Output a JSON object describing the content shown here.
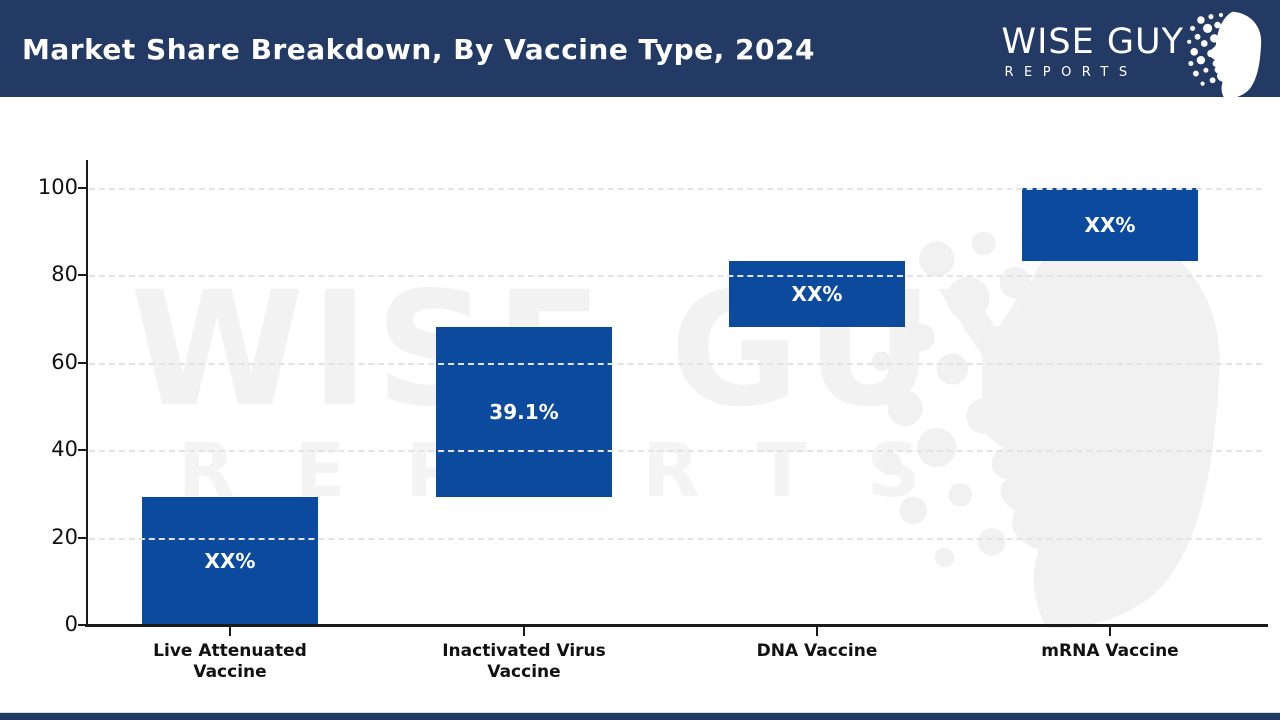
{
  "header": {
    "title": "Market Share Breakdown, By Vaccine Type, 2024",
    "logo": {
      "primary": "WISE GUY",
      "secondary": "REPORTS"
    }
  },
  "watermark": {
    "primary": "WISE GUY",
    "secondary": "REPORTS"
  },
  "chart_data": {
    "type": "bar",
    "subtype": "waterfall",
    "title": "Market Share Breakdown, By Vaccine Type, 2024",
    "categories": [
      "Live Attenuated\nVaccine",
      "Inactivated Virus\nVaccine",
      "DNA Vaccine",
      "mRNA Vaccine"
    ],
    "segments": [
      {
        "category": "Live Attenuated Vaccine",
        "start": 0,
        "end": 29.2,
        "label": "XX%"
      },
      {
        "category": "Inactivated Virus Vaccine",
        "start": 29.2,
        "end": 68.3,
        "label": "39.1%"
      },
      {
        "category": "DNA Vaccine",
        "start": 68.3,
        "end": 83.2,
        "label": "XX%"
      },
      {
        "category": "mRNA Vaccine",
        "start": 83.2,
        "end": 100,
        "label": "XX%"
      }
    ],
    "xlabel": "",
    "ylabel": "",
    "ylim": [
      0,
      100
    ],
    "yticks": [
      0,
      20,
      40,
      60,
      80,
      100
    ],
    "grid": "horizontal-dashed",
    "legend": "none",
    "colors": {
      "bar": "#0c4a9e",
      "header_bg": "#233a64",
      "grid": "#e3e3e3",
      "axis": "#1a1a1a",
      "bar_label": "#ffffff",
      "watermark": "#f2f2f2"
    }
  }
}
